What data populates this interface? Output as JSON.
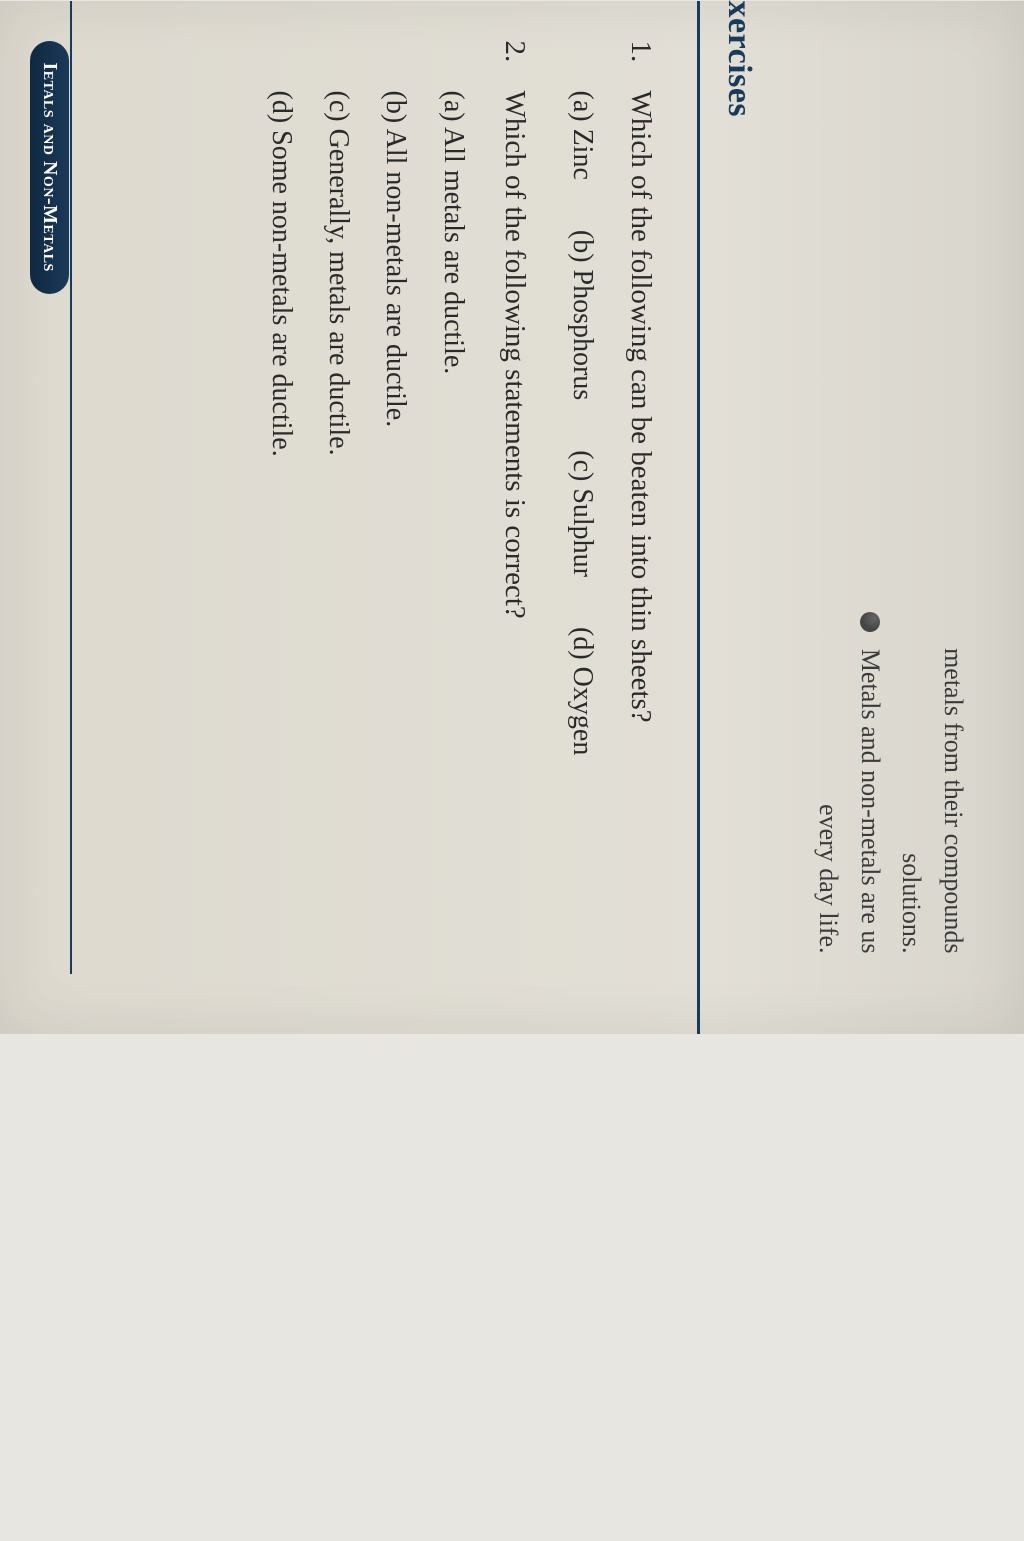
{
  "intro": {
    "line1": "metals from their compounds",
    "line2": "solutions.",
    "line3_prefix": "Metals and non-metals are us",
    "line4": "every day life."
  },
  "section_header": "xercises",
  "questions": [
    {
      "number": "1.",
      "text": "Which of the following can be beaten into thin sheets?",
      "layout": "row",
      "options": [
        {
          "letter": "(a)",
          "text": "Zinc"
        },
        {
          "letter": "(b)",
          "text": "Phosphorus"
        },
        {
          "letter": "(c)",
          "text": "Sulphur"
        },
        {
          "letter": "(d)",
          "text": "Oxygen"
        }
      ]
    },
    {
      "number": "2.",
      "text": "Which of the following statements is correct?",
      "layout": "column",
      "options": [
        {
          "letter": "(a)",
          "text": "All metals are ductile."
        },
        {
          "letter": "(b)",
          "text": "All non-metals are ductile."
        },
        {
          "letter": "(c)",
          "text": "Generally, metals are ductile."
        },
        {
          "letter": "(d)",
          "text": "Some non-metals are ductile."
        }
      ]
    }
  ],
  "footer": {
    "badge_text": "Ietals and Non-Metals"
  },
  "colors": {
    "page_bg": "#e2dfd6",
    "text_color": "#2a2a2a",
    "header_color": "#1a3a5a",
    "badge_bg": "#1a3a5a",
    "badge_text": "#ffffff"
  },
  "typography": {
    "body_fontsize": 28,
    "header_fontsize": 34,
    "intro_fontsize": 26,
    "badge_fontsize": 20
  }
}
